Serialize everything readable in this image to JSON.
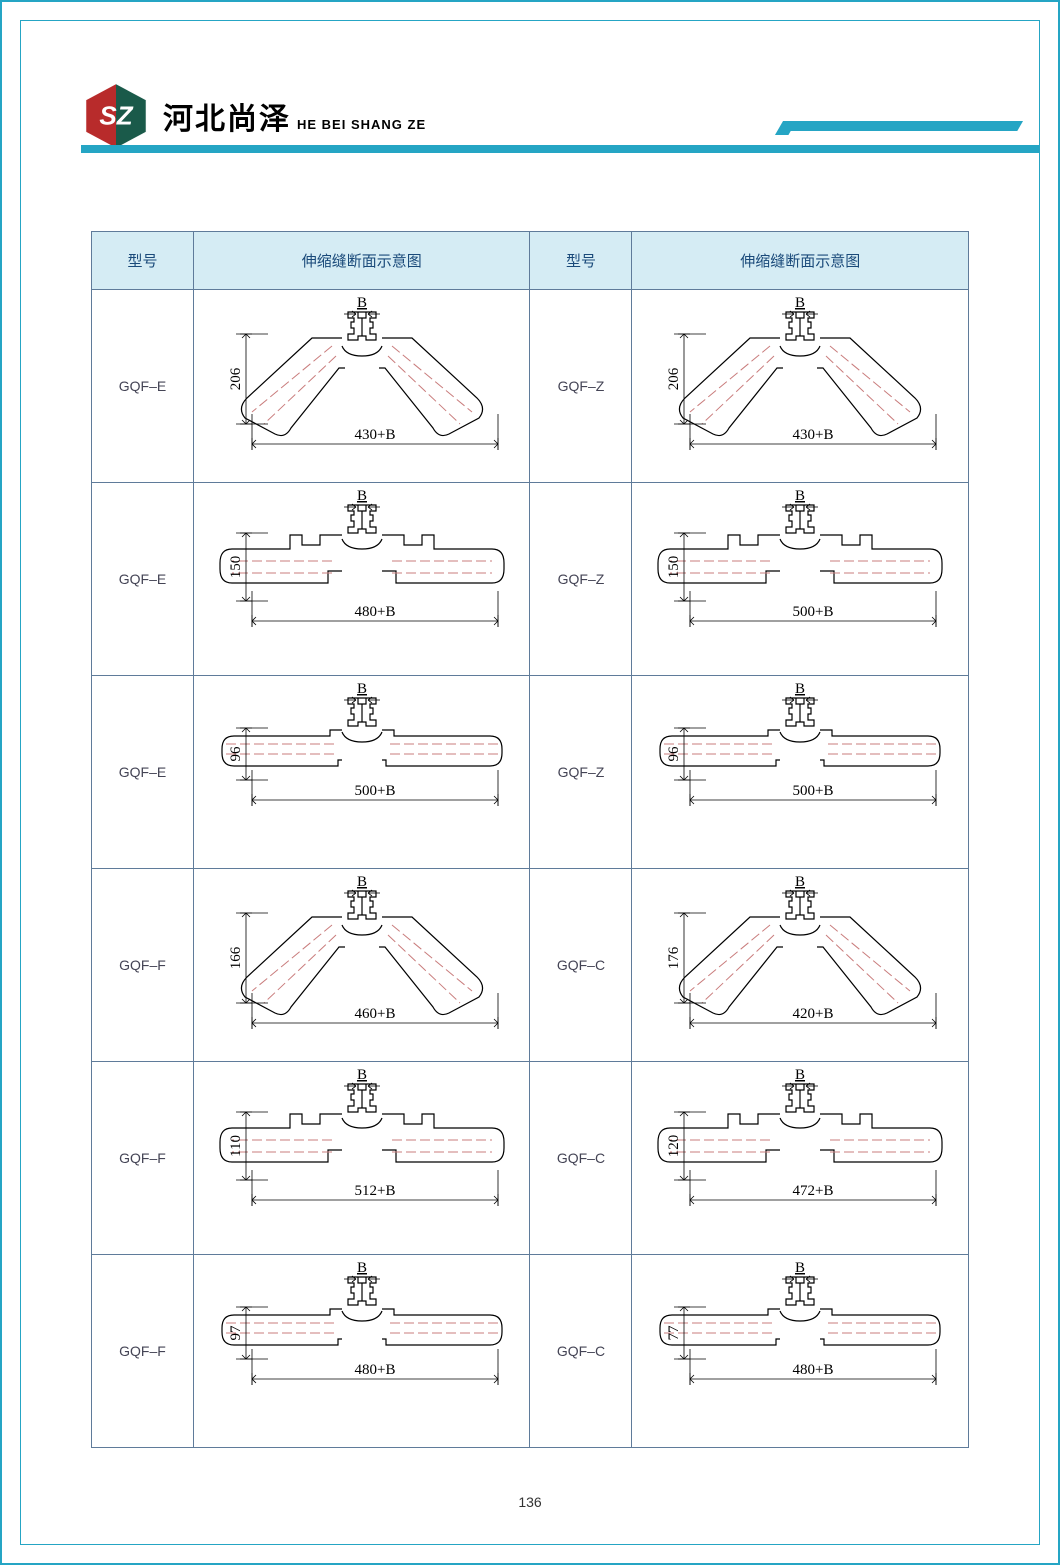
{
  "logo": {
    "letters": "SZ",
    "hex_fill_left": "#b82b2b",
    "hex_fill_right": "#1a5a4a"
  },
  "brand": {
    "cn": "河北尚泽",
    "en": "HE BEI SHANG ZE"
  },
  "accent_color": "#25a5c4",
  "border_color": "#5f7b9a",
  "header_bg": "#d5ecf4",
  "header_text": "#1a4a7a",
  "page_number": "136",
  "columns": {
    "model": "型号",
    "diagram": "伸缩缝断面示意图"
  },
  "rows": [
    {
      "left": {
        "model": "GQF–E",
        "h": "206",
        "w": "430+B",
        "shape": "tri"
      },
      "right": {
        "model": "GQF–Z",
        "h": "206",
        "w": "430+B",
        "shape": "tri"
      }
    },
    {
      "left": {
        "model": "GQF–E",
        "h": "150",
        "w": "480+B",
        "shape": "mid"
      },
      "right": {
        "model": "GQF–Z",
        "h": "150",
        "w": "500+B",
        "shape": "mid"
      }
    },
    {
      "left": {
        "model": "GQF–E",
        "h": "96",
        "w": "500+B",
        "shape": "flat"
      },
      "right": {
        "model": "GQF–Z",
        "h": "96",
        "w": "500+B",
        "shape": "flat"
      }
    },
    {
      "left": {
        "model": "GQF–F",
        "h": "166",
        "w": "460+B",
        "shape": "tri"
      },
      "right": {
        "model": "GQF–C",
        "h": "176",
        "w": "420+B",
        "shape": "tri"
      }
    },
    {
      "left": {
        "model": "GQF–F",
        "h": "110",
        "w": "512+B",
        "shape": "mid"
      },
      "right": {
        "model": "GQF–C",
        "h": "120",
        "w": "472+B",
        "shape": "mid"
      }
    },
    {
      "left": {
        "model": "GQF–F",
        "h": "97",
        "w": "480+B",
        "shape": "flat"
      },
      "right": {
        "model": "GQF–C",
        "h": "77",
        "w": "480+B",
        "shape": "flat"
      }
    }
  ],
  "diagram_style": {
    "stroke": "#000000",
    "stroke_width": 1.2,
    "dim_stroke": "#000000",
    "dim_stroke_width": 0.8,
    "dash": "#c97c7c",
    "text_size": 15,
    "b_label": "B"
  }
}
